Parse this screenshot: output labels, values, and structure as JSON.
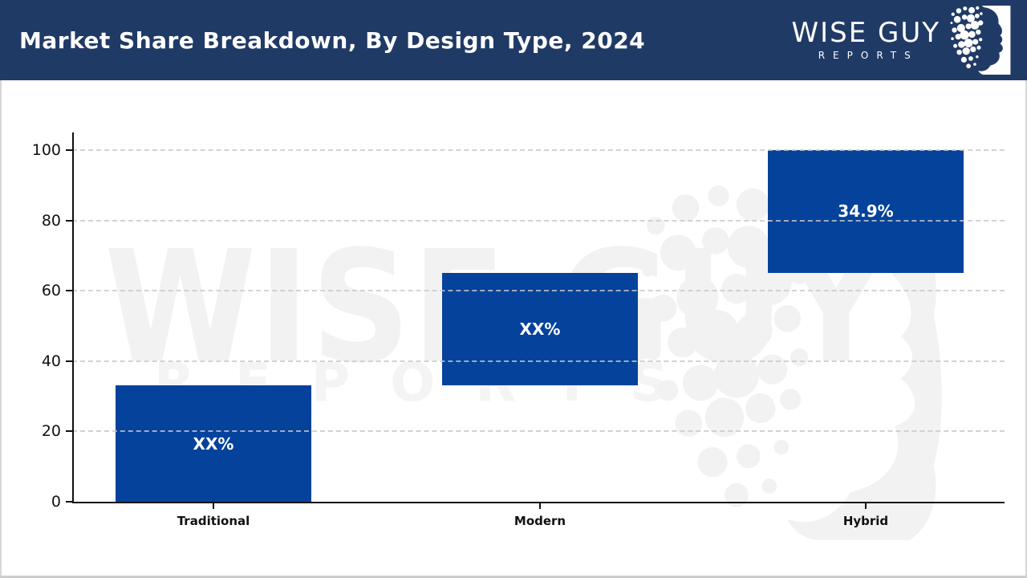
{
  "header": {
    "title": "Market Share Breakdown, By Design Type, 2024",
    "bg_color": "#203a66",
    "logo": {
      "line1": "WISE GUY",
      "line2": "REPORTS"
    }
  },
  "watermark": {
    "line1": "WISE GUY",
    "line2": "REPORTS"
  },
  "colors": {
    "bar": "#05429c",
    "bar_label": "#ffffff",
    "gridline": "#d8d8d8",
    "axis": "#111111",
    "header_bg": "#203a66",
    "watermark_text": "#f2f2f2"
  },
  "chart_data": {
    "type": "bar",
    "subtype": "floating-waterfall",
    "title": "Market Share Breakdown, By Design Type, 2024",
    "categories": [
      "Traditional",
      "Modern",
      "Hybrid"
    ],
    "segments": [
      {
        "category": "Traditional",
        "start": 0,
        "end": 33.0,
        "label": "XX%"
      },
      {
        "category": "Modern",
        "start": 33.0,
        "end": 65.1,
        "label": "XX%"
      },
      {
        "category": "Hybrid",
        "start": 65.1,
        "end": 100,
        "label": "34.9%"
      }
    ],
    "values_pct": [
      33.0,
      32.1,
      34.9
    ],
    "yticks": [
      0,
      20,
      40,
      60,
      80,
      100
    ],
    "ylim": [
      0,
      105
    ],
    "xlabel": "",
    "ylabel": "",
    "grid": "horizontal-dashed",
    "legend": "none",
    "bar_color": "#05429c",
    "label_color": "#ffffff"
  }
}
